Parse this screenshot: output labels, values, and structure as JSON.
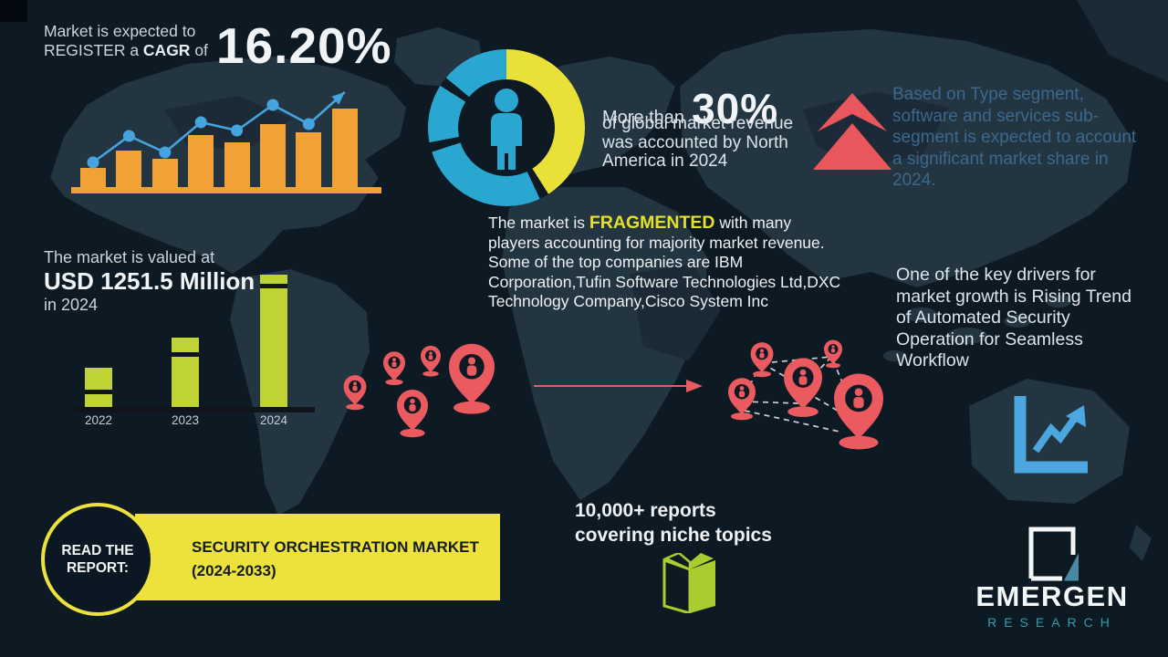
{
  "canvas": {
    "bg": "#0d1a24",
    "map_color": "#243542"
  },
  "cagr": {
    "line1": "Market is expected to",
    "line2_pre": "REGISTER a ",
    "line2_bold": "CAGR",
    "line2_post": " of",
    "value": "16.20%"
  },
  "north_america": {
    "pre": "More than",
    "value": "30%",
    "body": "of global market revenue was accounted by North America in 2024"
  },
  "type_segment": {
    "text": "Based on Type segment, software and services sub-segment is expected to account a significant market share in 2024."
  },
  "fragmented": {
    "pre": "The market is ",
    "highlight": "FRAGMENTED",
    "post": " with many players accounting for majority market revenue. Some of the top companies are IBM Corporation,Tufin Software Technologies Ltd,DXC Technology Company,Cisco System Inc"
  },
  "valuation": {
    "line1": "The market is valued at",
    "value": "USD 1251.5 Million",
    "line2": "in 2024"
  },
  "driver": {
    "text": "One of the key drivers for market growth is Rising Trend of Automated Security Operation for Seamless Workflow"
  },
  "read_report": {
    "circle_label": "READ THE REPORT:",
    "banner_text": "SECURITY ORCHESTRATION MARKET (2024-2033)"
  },
  "reports": {
    "line1": "10,000+ reports",
    "line2": "covering niche topics"
  },
  "brand": {
    "name": "EMERGEN",
    "subtitle": "RESEARCH"
  },
  "colors": {
    "yellow": "#ece23b",
    "teal": "#2aa7d0",
    "orange": "#f2a137",
    "line_blue": "#45a4dd",
    "green": "#bfd434",
    "salmon": "#ea5a5f",
    "steel_text": "#3b688c"
  },
  "chart_data": [
    {
      "type": "bar",
      "title": "CAGR growth trend (decorative, unlabeled axes)",
      "categories": [
        "1",
        "2",
        "3",
        "4",
        "5",
        "6",
        "7",
        "8"
      ],
      "values": [
        21,
        40,
        31,
        57,
        49,
        69,
        60,
        86
      ],
      "overlay_line_values": [
        27,
        56,
        38,
        71,
        62,
        90,
        69,
        104
      ],
      "value_unit": "relative-height-px",
      "bar_color": "#f2a137",
      "line_color": "#45a4dd",
      "annotation": "trend line with dots ending in an up-right arrow"
    },
    {
      "type": "pie",
      "title": "North America share of global market revenue, 2024",
      "label": "More than 30% — North America",
      "slices": [
        {
          "name": "highlight",
          "color": "#e9e138",
          "pct": 41
        },
        {
          "name": "gap",
          "color": "#0d1a24",
          "pct": 2
        },
        {
          "name": "rest-1",
          "color": "#2aa7d0",
          "pct": 27
        },
        {
          "name": "gap",
          "color": "#0d1a24",
          "pct": 2
        },
        {
          "name": "rest-2",
          "color": "#2aa7d0",
          "pct": 12
        },
        {
          "name": "gap",
          "color": "#0d1a24",
          "pct": 2
        },
        {
          "name": "rest-3",
          "color": "#2aa7d0",
          "pct": 14
        }
      ],
      "legend": "off",
      "center_icon": "person"
    },
    {
      "type": "bar",
      "title": "Market value by year (2024 = USD 1251.5 Million)",
      "categories": [
        "2022",
        "2023",
        "2024"
      ],
      "values": [
        43,
        76,
        145
      ],
      "value_unit": "relative-height-px",
      "stripe_offsets": [
        24,
        16,
        10
      ],
      "bar_color": "#bfd434"
    }
  ]
}
